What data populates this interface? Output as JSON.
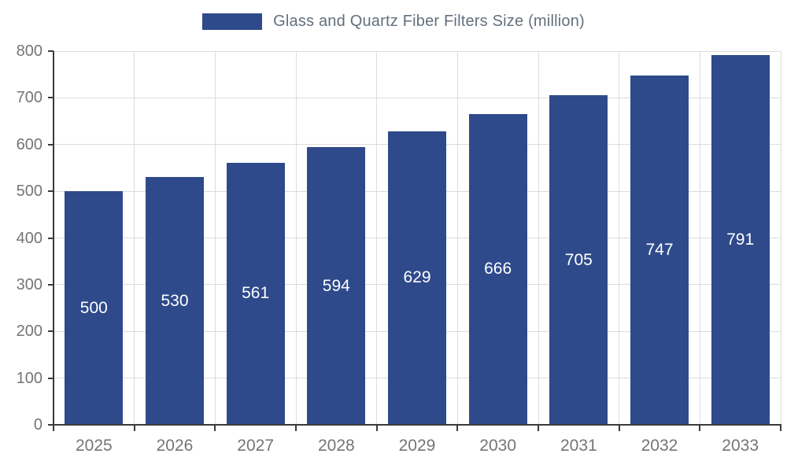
{
  "legend": {
    "label": "Glass and Quartz Fiber Filters Size (million)"
  },
  "chart_data": {
    "type": "bar",
    "title": "Glass and Quartz Fiber Filters Size (million)",
    "categories": [
      "2025",
      "2026",
      "2027",
      "2028",
      "2029",
      "2030",
      "2031",
      "2032",
      "2033"
    ],
    "values": [
      500,
      530,
      561,
      594,
      629,
      666,
      705,
      747,
      791
    ],
    "xlabel": "",
    "ylabel": "",
    "ylim": [
      0,
      800
    ],
    "ytick_interval": 100,
    "yticks": [
      0,
      100,
      200,
      300,
      400,
      500,
      600,
      700,
      800
    ],
    "grid": true,
    "legend_position": "top",
    "bar_color": "#2E4A8B",
    "value_label_color": "#FFFFFF",
    "axis_label_color": "#757575",
    "grid_color": "#DCDCDC",
    "axis_color": "#3A3A3A"
  }
}
